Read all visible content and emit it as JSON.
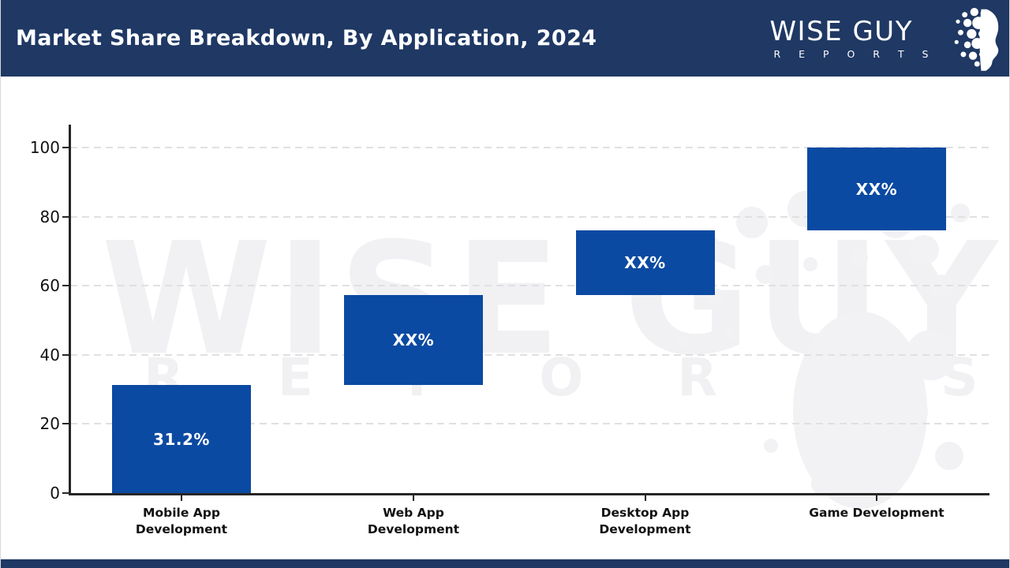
{
  "header": {
    "title": "Market Share Breakdown, By Application, 2024",
    "bg_color": "#1F3864",
    "logo_line1": "WISE GUY",
    "logo_line2": "R E P O R T S"
  },
  "watermark": {
    "line1": "WISE GUY",
    "line2": "R E P O R T S"
  },
  "footer": {
    "bg_color": "#1F3864"
  },
  "chart_data": {
    "type": "bar",
    "subtype": "waterfall",
    "title": "Market Share Breakdown, By Application, 2024",
    "categories": [
      "Mobile App\nDevelopment",
      "Web App\nDevelopment",
      "Desktop App\nDevelopment",
      "Game Development"
    ],
    "bars": [
      {
        "category": "Mobile App Development",
        "start": 0,
        "end": 31.2,
        "label": "31.2%"
      },
      {
        "category": "Web App Development",
        "start": 31.2,
        "end": 57.2,
        "label": "XX%"
      },
      {
        "category": "Desktop App Development",
        "start": 57.2,
        "end": 76.0,
        "label": "XX%"
      },
      {
        "category": "Game Development",
        "start": 76.0,
        "end": 100,
        "label": "XX%"
      }
    ],
    "xlabel": "",
    "ylabel": "",
    "yticks": [
      0,
      20,
      40,
      60,
      80,
      100
    ],
    "ylim": [
      0,
      106
    ],
    "grid": {
      "horizontal": true,
      "style": "dashed",
      "color": "#e0e0e0"
    },
    "bar_color": "#0B4AA2",
    "bar_label_color": "#ffffff",
    "axis_color": "#262626",
    "legend": null
  }
}
